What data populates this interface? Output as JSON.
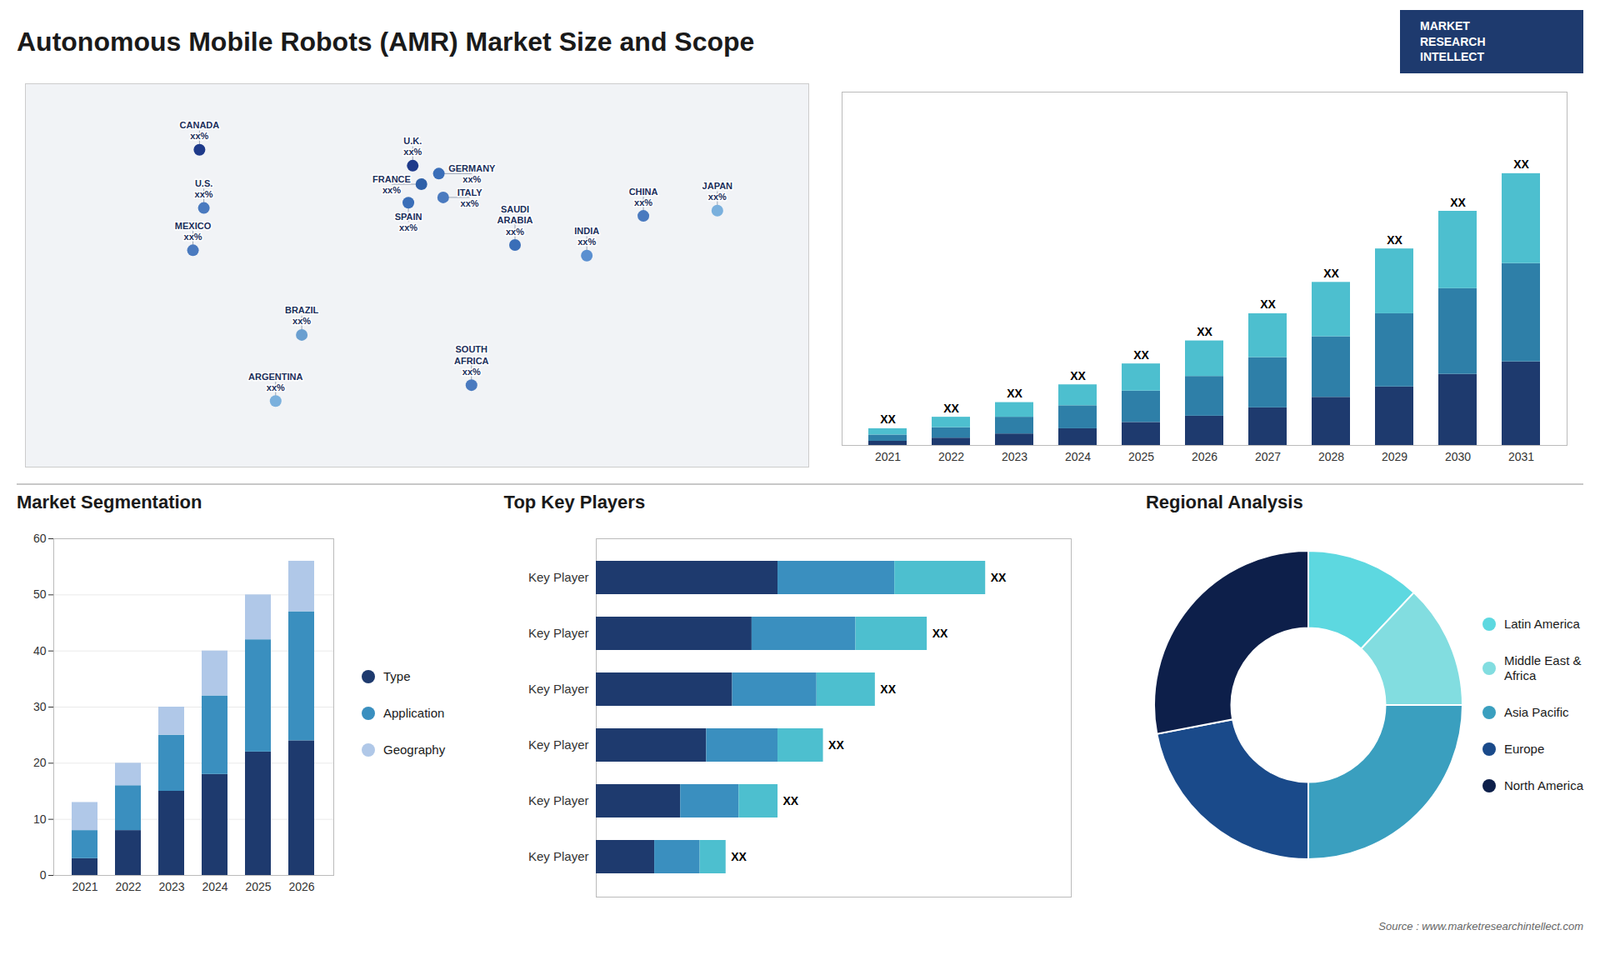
{
  "title": "Autonomous Mobile Robots (AMR) Market Size and Scope",
  "annotations": [
    "MARKET\nRESEARCH\nINTELLECT",
    "Source : www.marketresearchintellect.com"
  ],
  "chart_data": [
    {
      "type": "map",
      "categories": [
        "CANADA",
        "U.S.",
        "MEXICO",
        "BRAZIL",
        "ARGENTINA",
        "U.K.",
        "FRANCE",
        "SPAIN",
        "GERMANY",
        "ITALY",
        "SAUDI\nARABIA",
        "SOUTH\nAFRICA",
        "CHINA",
        "INDIA",
        "JAPAN"
      ],
      "x": [
        -100,
        -98,
        -103,
        -53,
        -65,
        -2,
        2,
        -4,
        10,
        12,
        45,
        25,
        104,
        78,
        138
      ],
      "y": [
        60,
        38,
        22,
        -10,
        -35,
        54,
        47,
        40,
        51,
        42,
        24,
        -29,
        35,
        20,
        37
      ],
      "value_labels": [
        "xx%",
        "xx%",
        "xx%",
        "xx%",
        "xx%",
        "xx%",
        "xx%",
        "xx%",
        "xx%",
        "xx%",
        "xx%",
        "xx%",
        "xx%",
        "xx%",
        "xx%"
      ],
      "colors": [
        "#1e3a8a",
        "#4a7abf",
        "#4a7abf",
        "#6a9fd0",
        "#7ab0dd",
        "#1e3a8a",
        "#2e60a8",
        "#3a6eb8",
        "#3a6eb8",
        "#4a7abf",
        "#3a6eb8",
        "#4a7abf",
        "#4a7abf",
        "#5a8fd0",
        "#7ab0dd"
      ],
      "xlim": [
        -180,
        180
      ],
      "ylim": [
        -60,
        85
      ],
      "tick_labels": false,
      "grid": false
    },
    {
      "type": "bar",
      "stacked": true,
      "categories": [
        "2021",
        "2022",
        "2023",
        "2024",
        "2025",
        "2026",
        "2027",
        "2028",
        "2029",
        "2030",
        "2031"
      ],
      "series": [
        {
          "color": "#1e3a6e",
          "values": [
            2,
            3.5,
            5.5,
            8,
            11,
            14,
            18,
            23,
            28,
            34,
            40
          ]
        },
        {
          "color": "#2e7fa8",
          "values": [
            3,
            5,
            8,
            11,
            15,
            19,
            24,
            29,
            35,
            41,
            47
          ]
        },
        {
          "color": "#4dbfcf",
          "values": [
            3,
            5,
            7,
            10,
            13,
            17,
            21,
            26,
            31,
            37,
            43
          ]
        }
      ],
      "annotations": [
        "XX",
        "XX",
        "XX",
        "XX",
        "XX",
        "XX",
        "XX",
        "XX",
        "XX",
        "XX",
        "XX"
      ],
      "ylim": [
        0,
        169
      ],
      "tick_labels": "x",
      "grid": false
    },
    {
      "type": "bar",
      "stacked": true,
      "title": "Market Segmentation",
      "categories": [
        "2021",
        "2022",
        "2023",
        "2024",
        "2025",
        "2026"
      ],
      "series": [
        {
          "name": "Type",
          "color": "#1e3a6e",
          "values": [
            3,
            8,
            15,
            18,
            22,
            24
          ]
        },
        {
          "name": "Application",
          "color": "#3a8fbf",
          "values": [
            5,
            8,
            10,
            14,
            20,
            23
          ]
        },
        {
          "name": "Geography",
          "color": "#b0c8e8",
          "values": [
            5,
            4,
            5,
            8,
            8,
            9
          ]
        }
      ],
      "ylim": [
        0,
        60
      ],
      "yticks": [
        0,
        10,
        20,
        30,
        40,
        50,
        60
      ],
      "grid": true,
      "legend": "right"
    },
    {
      "type": "bar",
      "stacked": true,
      "orientation": "horizontal",
      "title": "Top Key Players",
      "categories": [
        "Key Player",
        "Key Player",
        "Key Player",
        "Key Player",
        "Key Player",
        "Key Player"
      ],
      "series": [
        {
          "color": "#1e3a6e",
          "values": [
            28,
            24,
            21,
            17,
            13,
            9
          ]
        },
        {
          "color": "#3a8fbf",
          "values": [
            18,
            16,
            13,
            11,
            9,
            7
          ]
        },
        {
          "color": "#4dbfcf",
          "values": [
            14,
            11,
            9,
            7,
            6,
            4
          ]
        }
      ],
      "annotations": [
        "XX",
        "XX",
        "XX",
        "XX",
        "XX",
        "XX"
      ],
      "xlim": [
        0,
        73.2
      ],
      "tick_labels": "y",
      "grid": false
    },
    {
      "type": "donut",
      "title": "Regional Analysis",
      "categories": [
        "Latin America",
        "Middle East &\nAfrica",
        "Asia Pacific",
        "Europe",
        "North America"
      ],
      "values": [
        12,
        13,
        25,
        22,
        28
      ],
      "colors": [
        "#5dd8e0",
        "#82dde0",
        "#3a9fbf",
        "#1a4a8a",
        "#0d1f4a"
      ],
      "legend": "right"
    }
  ]
}
